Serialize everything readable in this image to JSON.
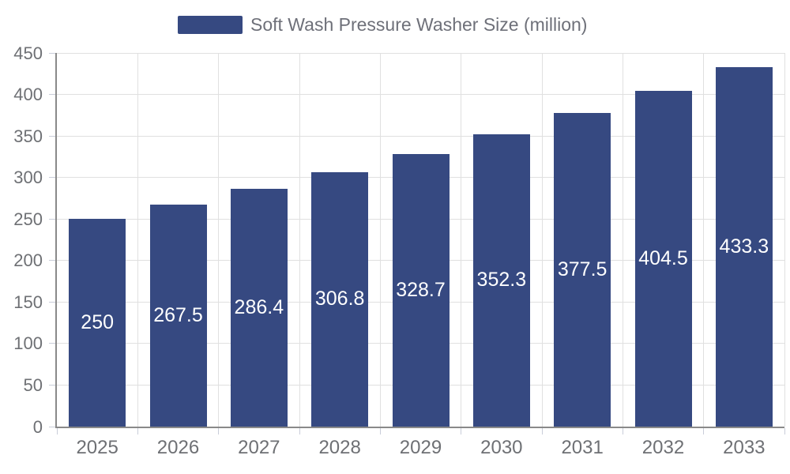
{
  "legend": {
    "label": "Soft Wash Pressure Washer Size (million)",
    "swatch_color": "#364981"
  },
  "colors": {
    "bar": "#364981",
    "grid": "#e0e0e0",
    "axis_line": "#898989",
    "tick": "#c9cdd9",
    "axis_text": "#6e7074",
    "bar_label_text": "#ffffff"
  },
  "chart_data": {
    "type": "bar",
    "title": "",
    "categories": [
      "2025",
      "2026",
      "2027",
      "2028",
      "2029",
      "2030",
      "2031",
      "2032",
      "2033"
    ],
    "series": [
      {
        "name": "Soft Wash Pressure Washer Size (million)",
        "values": [
          250,
          267.5,
          286.4,
          306.8,
          328.7,
          352.3,
          377.5,
          404.5,
          433.3
        ],
        "value_labels": [
          "250",
          "267.5",
          "286.4",
          "306.8",
          "328.7",
          "352.3",
          "377.5",
          "404.5",
          "433.3"
        ]
      }
    ],
    "xlabel": "",
    "ylabel": "",
    "ylim": [
      0,
      450
    ],
    "ytick_step": 50,
    "ytick_labels": [
      "0",
      "50",
      "100",
      "150",
      "200",
      "250",
      "300",
      "350",
      "400",
      "450"
    ],
    "grid": "on",
    "legend_position": "top-center",
    "value_label_position": "inside-center"
  }
}
